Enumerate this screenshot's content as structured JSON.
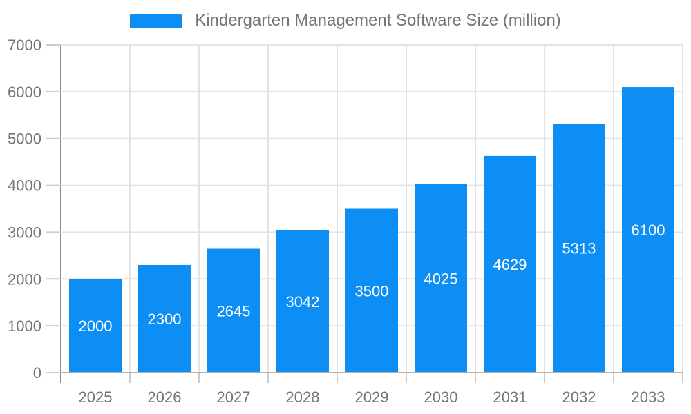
{
  "chart_data": {
    "type": "bar",
    "title": "Kindergarten Management Software Size (million)",
    "categories": [
      "2025",
      "2026",
      "2027",
      "2028",
      "2029",
      "2030",
      "2031",
      "2032",
      "2033"
    ],
    "values": [
      2000,
      2300,
      2645,
      3042,
      3500,
      4025,
      4629,
      5313,
      6100
    ],
    "xlabel": "",
    "ylabel": "",
    "ylim": [
      0,
      7000
    ],
    "ytick_step": 1000,
    "ytick_labels": [
      "0",
      "1000",
      "2000",
      "3000",
      "4000",
      "5000",
      "6000",
      "7000"
    ],
    "grid": true,
    "legend_position": "top-center",
    "colors": {
      "bar": "#0d8ef4",
      "bar_value_label": "#ffffff",
      "grid_line": "#e3e3e3",
      "y_axis_line": "#8c8c8c",
      "x_axis_line": "#b3b3b3",
      "tick_line": "#cccccc",
      "axis_text": "#757575",
      "legend_text": "#757575"
    }
  }
}
